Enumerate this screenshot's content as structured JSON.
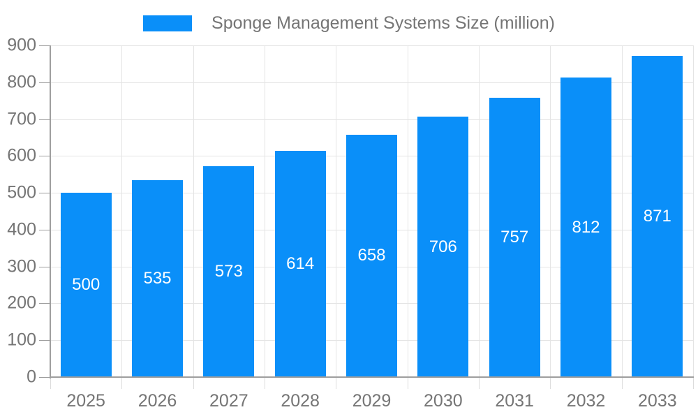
{
  "legend": {
    "label": "Sponge Management Systems Size (million)"
  },
  "colors": {
    "bar": "#0A8FF9",
    "bar_value_text": "#FFFFFF",
    "grid_line": "#E4E4E4",
    "axis_line": "#9E9E9E",
    "y_tick": "#9E9E9E",
    "x_tick": "#DCDCDC",
    "tick_label_text": "#757575",
    "legend_text": "#757575",
    "background": "#FFFFFF"
  },
  "chart_data": {
    "type": "bar",
    "title": "Sponge Management Systems Size (million)",
    "series_name": "Sponge Management Systems Size (million)",
    "categories": [
      "2025",
      "2026",
      "2027",
      "2028",
      "2029",
      "2030",
      "2031",
      "2032",
      "2033"
    ],
    "values": [
      500,
      535,
      573,
      614,
      658,
      706,
      757,
      812,
      871
    ],
    "xlabel": "",
    "ylabel": "",
    "ylim": [
      0,
      900
    ],
    "yticks": [
      0,
      100,
      200,
      300,
      400,
      500,
      600,
      700,
      800,
      900
    ],
    "grid": true,
    "legend_position": "top-center",
    "value_labels": "inside-center"
  }
}
